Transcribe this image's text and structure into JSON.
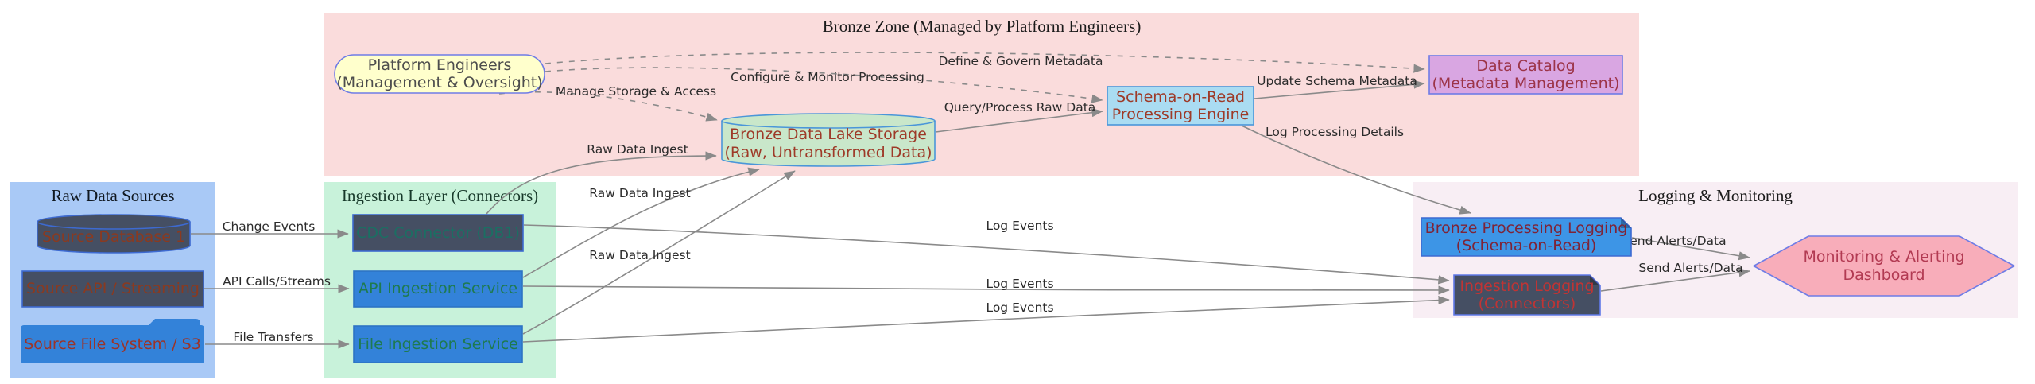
{
  "diagram": {
    "zones": [
      {
        "id": "bronze",
        "title": "Bronze Zone (Managed by Platform Engineers)",
        "bg": "#fadcdc",
        "title_color": "#1a1a1a"
      },
      {
        "id": "sources",
        "title": "Raw Data Sources",
        "bg": "#a9c9f6",
        "title_color": "#101820"
      },
      {
        "id": "ingestion",
        "title": "Ingestion Layer (Connectors)",
        "bg": "#c8f2da",
        "title_color": "#17392a"
      },
      {
        "id": "logging",
        "title": "Logging & Monitoring",
        "bg": "#f8eef4",
        "title_color": "#1a1a1a"
      }
    ],
    "nodes": [
      {
        "id": "pe",
        "label": "Platform Engineers\n(Management & Oversight)",
        "shape": "stadium",
        "fill": "#ffffcc",
        "stroke": "#6e7ce6",
        "text": "#4d4d4d"
      },
      {
        "id": "storage",
        "label": "Bronze Data Lake Storage\n(Raw, Untransformed Data)",
        "shape": "cylinder",
        "fill": "#c9e7ca",
        "stroke": "#4a96d9",
        "text": "#9e3a28"
      },
      {
        "id": "engine",
        "label": "Schema-on-Read\nProcessing Engine",
        "shape": "rect",
        "fill": "#aadcf2",
        "stroke": "#4a96d9",
        "text": "#9e3a28"
      },
      {
        "id": "catalog",
        "label": "Data Catalog\n(Metadata Management)",
        "shape": "rect",
        "fill": "#d9a6e2",
        "stroke": "#6e7ce6",
        "text": "#9c3448"
      },
      {
        "id": "src_db",
        "label": "Source Database 1",
        "shape": "cylinder",
        "fill": "#454f63",
        "stroke": "#3d6ad1",
        "text": "#8a3a20"
      },
      {
        "id": "src_api",
        "label": "Source API / Streaming",
        "shape": "rect",
        "fill": "#454f63",
        "stroke": "#3d6ad1",
        "text": "#8a3a20"
      },
      {
        "id": "src_file",
        "label": "Source File System / S3",
        "shape": "folder",
        "fill": "#3382d9",
        "stroke": "#2e74c4",
        "text": "#9c3428"
      },
      {
        "id": "cdc",
        "label": "CDC Connector (DB1)",
        "shape": "rect",
        "fill": "#454f63",
        "stroke": "#3d6ad1",
        "text": "#1b6f63"
      },
      {
        "id": "api_ing",
        "label": "API Ingestion Service",
        "shape": "rect",
        "fill": "#3382d9",
        "stroke": "#2e74c4",
        "text": "#1e7a50"
      },
      {
        "id": "file_ing",
        "label": "File Ingestion Service",
        "shape": "rect",
        "fill": "#3382d9",
        "stroke": "#2e74c4",
        "text": "#1e7a50"
      },
      {
        "id": "bpl",
        "label": "Bronze Processing Logging\n(Schema-on-Read)",
        "shape": "note",
        "fill": "#3d95e6",
        "stroke": "#3d6ad1",
        "text": "#7e2437"
      },
      {
        "id": "il",
        "label": "Ingestion Logging\n(Connectors)",
        "shape": "note",
        "fill": "#454f63",
        "stroke": "#5f78e8",
        "text": "#c03434"
      },
      {
        "id": "dash",
        "label": "Monitoring & Alerting\nDashboard",
        "shape": "hexagon",
        "fill": "#f8adba",
        "stroke": "#6e7ce6",
        "text": "#b23a52"
      }
    ],
    "edges": [
      {
        "from": "src_db",
        "to": "cdc",
        "label": "Change Events",
        "style": "solid"
      },
      {
        "from": "src_api",
        "to": "api_ing",
        "label": "API Calls/Streams",
        "style": "solid"
      },
      {
        "from": "src_file",
        "to": "file_ing",
        "label": "File Transfers",
        "style": "solid"
      },
      {
        "from": "cdc",
        "to": "storage",
        "label": "Raw Data Ingest",
        "style": "solid"
      },
      {
        "from": "api_ing",
        "to": "storage",
        "label": "Raw Data Ingest",
        "style": "solid"
      },
      {
        "from": "file_ing",
        "to": "storage",
        "label": "Raw Data Ingest",
        "style": "solid"
      },
      {
        "from": "storage",
        "to": "engine",
        "label": "Query/Process Raw Data",
        "style": "solid"
      },
      {
        "from": "pe",
        "to": "engine",
        "label": "Configure & Monitor Processing",
        "style": "dashed"
      },
      {
        "from": "pe",
        "to": "catalog",
        "label": "Define & Govern Metadata",
        "style": "dashed"
      },
      {
        "from": "engine",
        "to": "catalog",
        "label": "Update Schema Metadata",
        "style": "solid"
      },
      {
        "from": "pe",
        "to": "storage",
        "label": "Manage Storage & Access",
        "style": "dashed"
      },
      {
        "from": "engine",
        "to": "bpl",
        "label": "Log Processing Details",
        "style": "solid"
      },
      {
        "from": "cdc",
        "to": "il",
        "label": "Log Events",
        "style": "solid"
      },
      {
        "from": "api_ing",
        "to": "il",
        "label": "Log Events",
        "style": "solid"
      },
      {
        "from": "file_ing",
        "to": "il",
        "label": "Log Events",
        "style": "solid"
      },
      {
        "from": "bpl",
        "to": "dash",
        "label": "Send Alerts/Data",
        "style": "solid"
      },
      {
        "from": "il",
        "to": "dash",
        "label": "Send Alerts/Data",
        "style": "solid"
      }
    ],
    "edge_color": "#8a8a8a"
  }
}
